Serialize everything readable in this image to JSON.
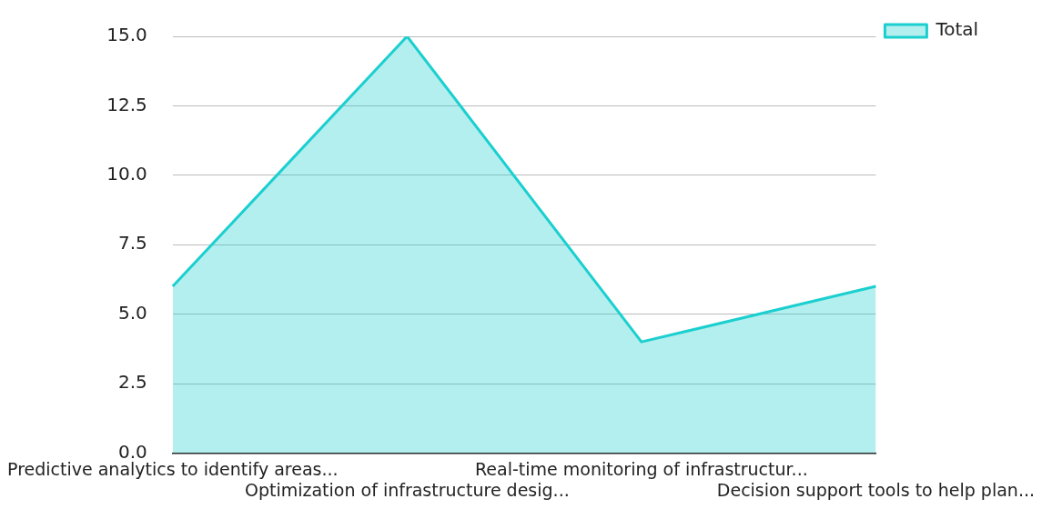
{
  "chart_data": {
    "type": "area",
    "categories": [
      "Predictive analytics to identify areas...",
      "Optimization of infrastructure desig...",
      "Real-time monitoring of infrastructur...",
      "Decision support tools to help plan..."
    ],
    "series": [
      {
        "name": "Total",
        "color": "#1ccfcf",
        "values": [
          6,
          15,
          4,
          6
        ]
      }
    ],
    "ylim": [
      0,
      15
    ],
    "yticks": [
      {
        "value": 0,
        "label": "0.0"
      },
      {
        "value": 2.5,
        "label": "2.5"
      },
      {
        "value": 5,
        "label": "5.0"
      },
      {
        "value": 7.5,
        "label": "7.5"
      },
      {
        "value": 10,
        "label": "10.0"
      },
      {
        "value": 12.5,
        "label": "12.5"
      },
      {
        "value": 15,
        "label": "15.0"
      }
    ],
    "grid": "y",
    "legend": "top right"
  }
}
